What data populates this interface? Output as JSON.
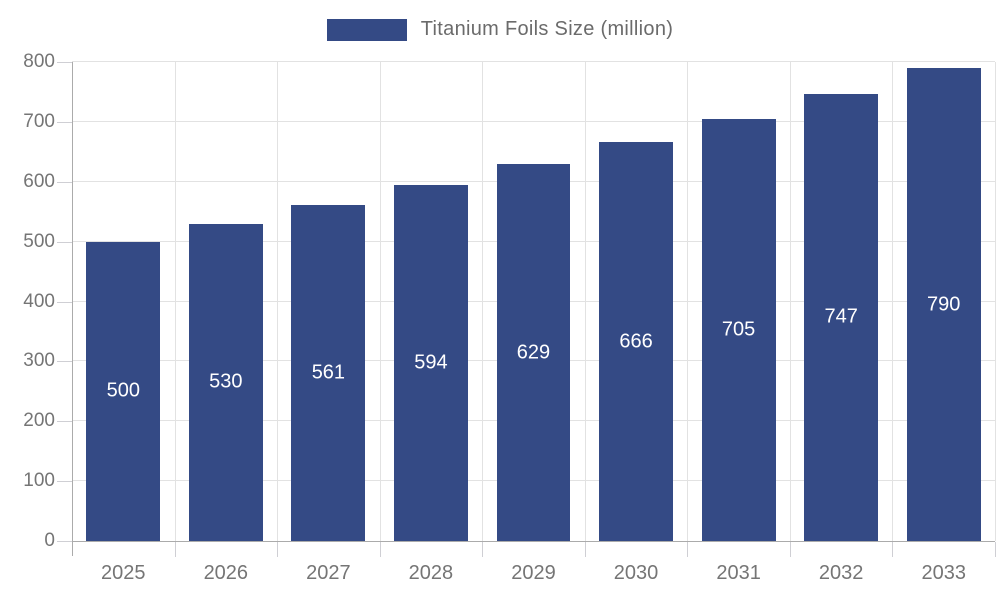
{
  "legend": {
    "label": "Titanium Foils Size (million)"
  },
  "chart_data": {
    "type": "bar",
    "title": "Titanium Foils Size (million)",
    "categories": [
      "2025",
      "2026",
      "2027",
      "2028",
      "2029",
      "2030",
      "2031",
      "2032",
      "2033"
    ],
    "series": [
      {
        "name": "Titanium Foils Size (million)",
        "values": [
          500,
          530,
          561,
          594,
          629,
          666,
          705,
          747,
          790
        ]
      }
    ],
    "xlabel": "",
    "ylabel": "",
    "ylim": [
      0,
      800
    ],
    "ytick_step": 100,
    "yticks": [
      0,
      100,
      200,
      300,
      400,
      500,
      600,
      700,
      800
    ],
    "grid": true,
    "legend_position": "top-center",
    "bar_labels": "inside-center",
    "colors": {
      "bar": "#344a85",
      "grid": "#e2e2e2",
      "axis": "#ababab",
      "tick": "#cfcfd4",
      "tick_text": "#757575",
      "bar_label_text": "#ffffff",
      "legend_text": "#6b6b6b"
    }
  }
}
